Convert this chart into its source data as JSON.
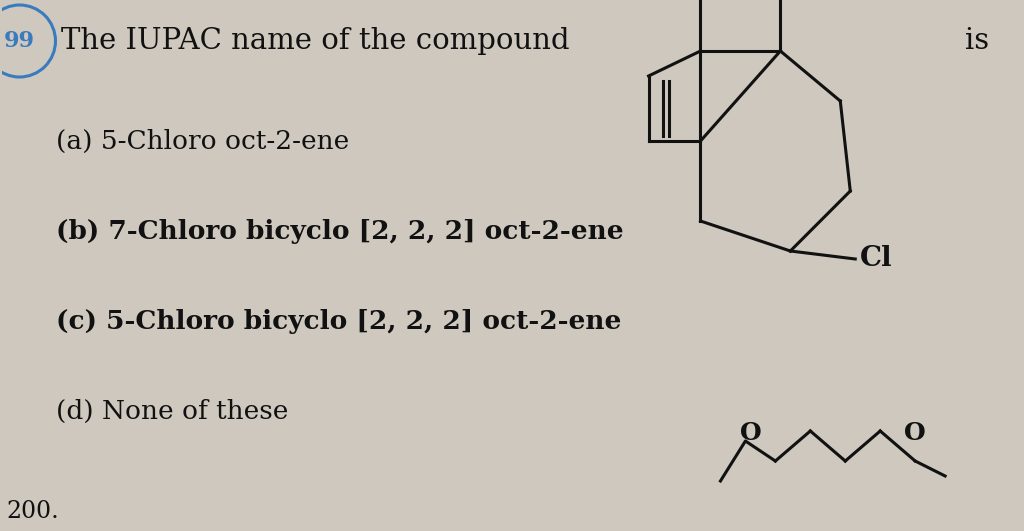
{
  "question_number": "99",
  "question_text": "The IUPAC name of the compound",
  "question_suffix": "is",
  "options": [
    "(a) 5-Chloro oct-2-ene",
    "(b) 7-Chloro bicyclo [2, 2, 2] oct-2-ene",
    "(c) 5-Chloro bicyclo [2, 2, 2] oct-2-ene",
    "(d) None of these"
  ],
  "bg_color": "#cec8be",
  "text_color": "#111111",
  "bold_options": [
    1,
    2
  ],
  "circle_color": "#3a7abf",
  "title_fontsize": 21,
  "option_fontsize": 19,
  "mol_color": "#111111"
}
